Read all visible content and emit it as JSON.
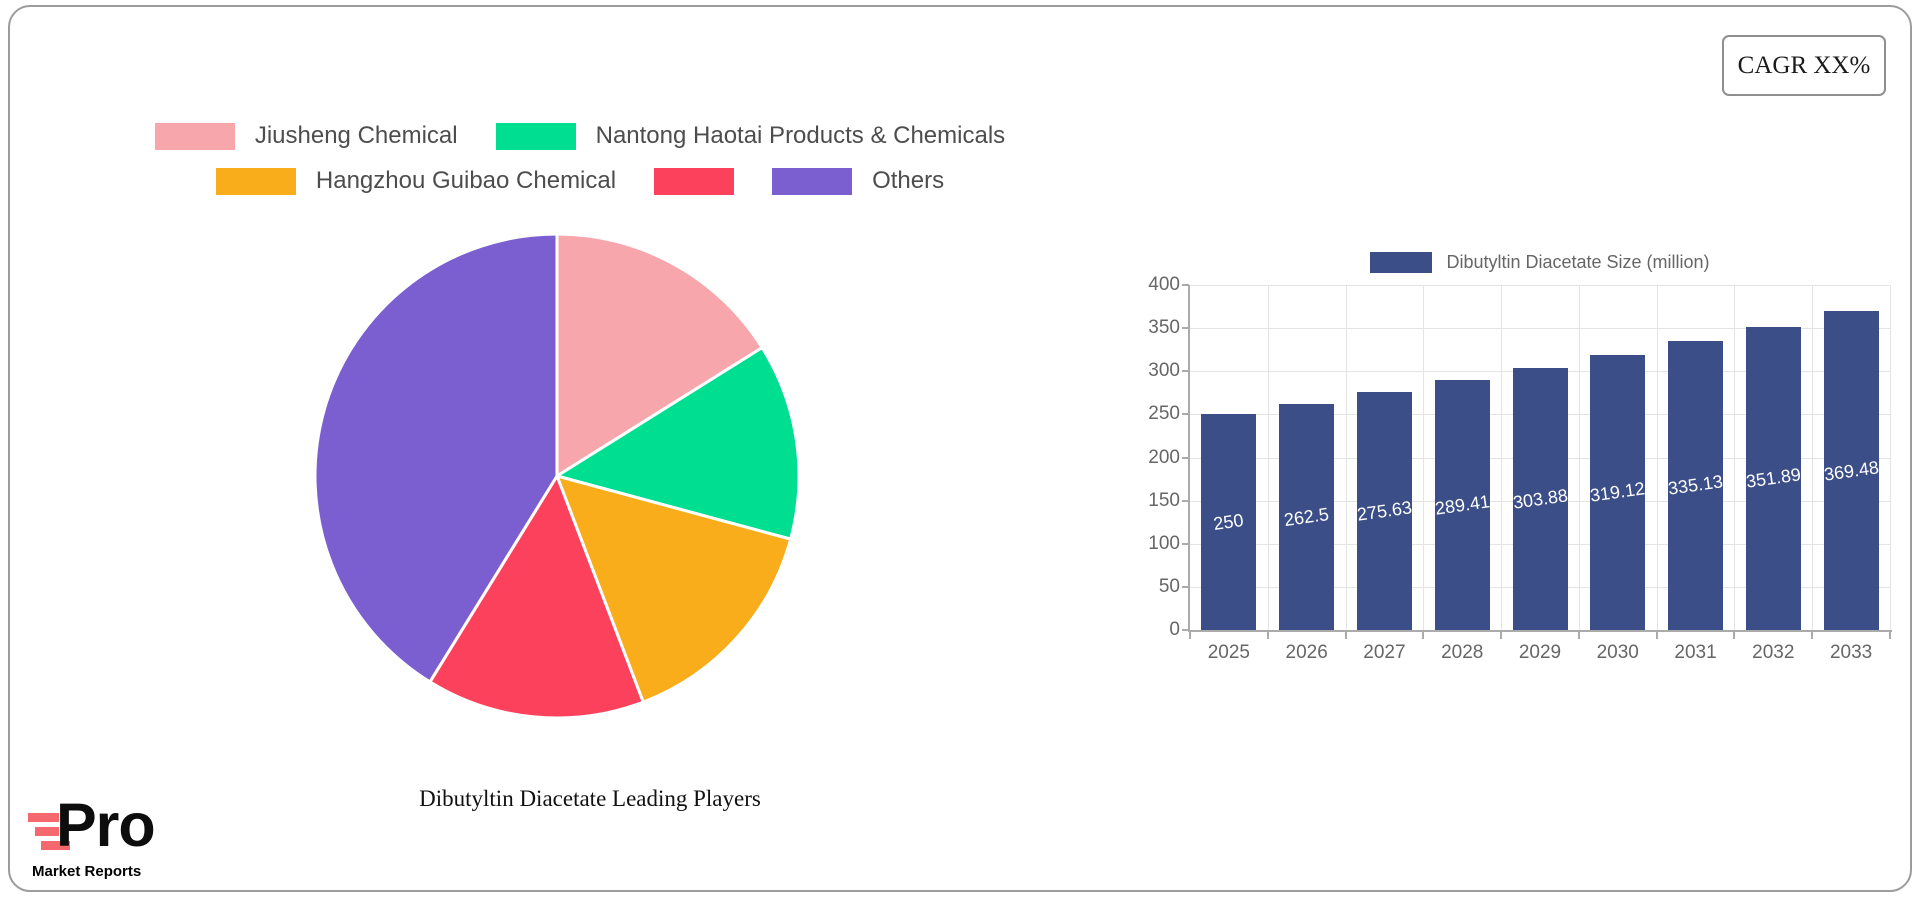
{
  "cagr_box": {
    "label": "CAGR XX%"
  },
  "logo": {
    "name": "Pro",
    "tagline": "Market Reports",
    "accent_color": "#f5696e"
  },
  "chart_data": [
    {
      "type": "pie",
      "title": "Dibutyltin Diacetate Leading Players",
      "slices": [
        {
          "label": "Jiusheng Chemical",
          "percent": 16.1,
          "color": "#f7a6ac"
        },
        {
          "label": "Nantong Haotai Products & Chemicals",
          "percent": 13.1,
          "color": "#00de91"
        },
        {
          "label": "Hangzhou Guibao Chemical",
          "percent": 15.0,
          "color": "#faad1b"
        },
        {
          "label": "",
          "percent": 14.6,
          "color": "#fb415c"
        },
        {
          "label": "Others",
          "percent": 41.2,
          "color": "#7b5fd1"
        }
      ],
      "start_angle_deg": 0,
      "direction": "clockwise",
      "legend_position": "top",
      "legend_rows": [
        [
          0,
          1
        ],
        [
          2,
          3,
          4
        ]
      ]
    },
    {
      "type": "bar",
      "legend_label": "Dibutyltin Diacetate Size (million)",
      "categories": [
        "2025",
        "2026",
        "2027",
        "2028",
        "2029",
        "2030",
        "2031",
        "2032",
        "2033"
      ],
      "values": [
        250,
        262.5,
        275.63,
        289.41,
        303.88,
        319.12,
        335.13,
        351.89,
        369.48
      ],
      "bar_color": "#3b4e87",
      "value_label_color": "#ffffff",
      "ylim": [
        0,
        400
      ],
      "ytick_step": 50,
      "grid": true,
      "legend_position": "top"
    }
  ]
}
